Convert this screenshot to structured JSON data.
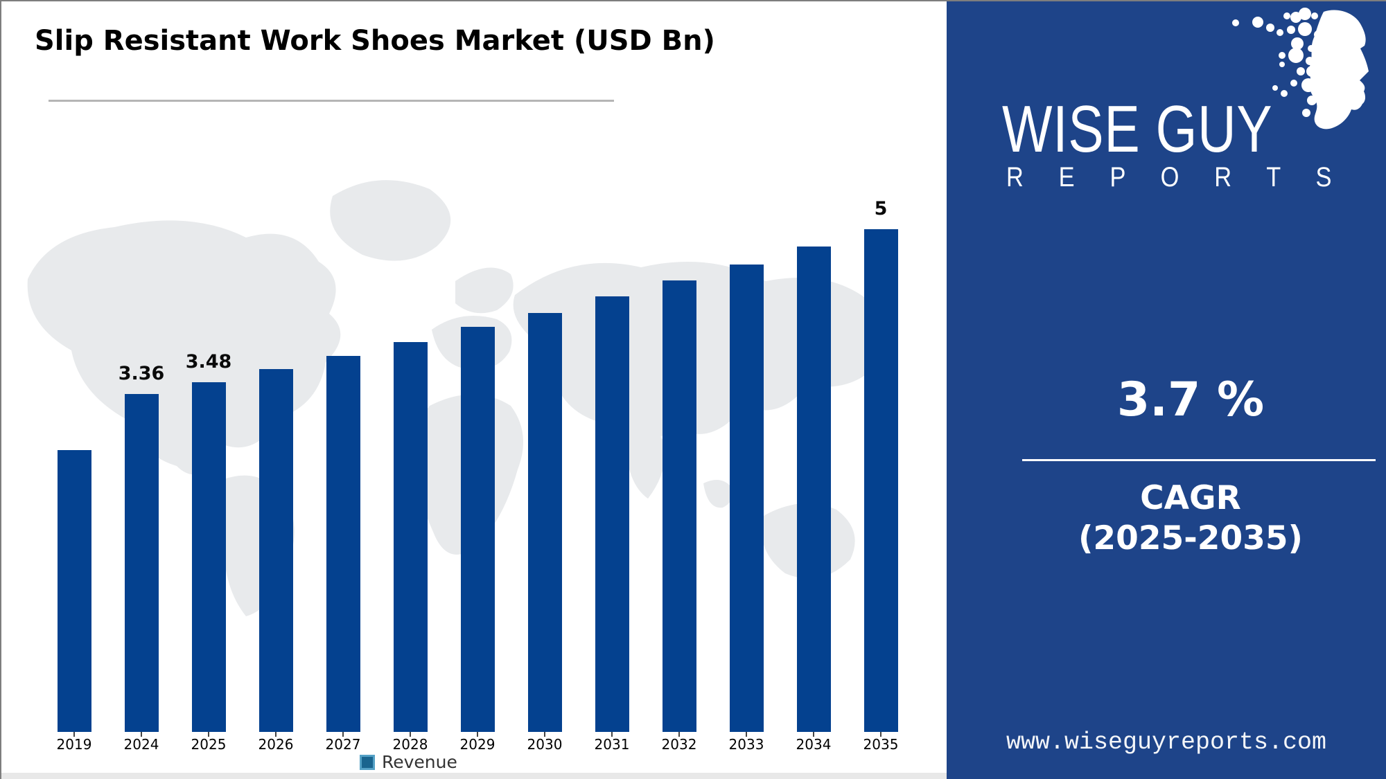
{
  "page": {
    "title": "Slip Resistant Work Shoes Market (USD Bn)"
  },
  "chart_data": {
    "type": "bar",
    "title": "Slip Resistant Work Shoes Market (USD Bn)",
    "unit": "USD Bn",
    "categories": [
      "2019",
      "2024",
      "2025",
      "2026",
      "2027",
      "2028",
      "2029",
      "2030",
      "2031",
      "2032",
      "2033",
      "2034",
      "2035"
    ],
    "values": [
      2.8,
      3.36,
      3.48,
      3.61,
      3.74,
      3.88,
      4.03,
      4.17,
      4.33,
      4.49,
      4.65,
      4.83,
      5
    ],
    "data_labels": [
      "",
      "3.36",
      "3.48",
      "",
      "",
      "",
      "",
      "",
      "",
      "",
      "",
      "",
      "5"
    ],
    "ylim": [
      0,
      5.6
    ],
    "grid": false,
    "bar_color": "#04418f",
    "legend": {
      "position": "bottom",
      "entries": [
        {
          "label": "Revenue",
          "color": "#19648e"
        }
      ]
    }
  },
  "sidebar": {
    "logo_line1": "WISE GUY",
    "logo_line2": "R E P O R T S",
    "cagr_value": "3.7 %",
    "cagr_line1": "CAGR",
    "cagr_line2": "(2025-2035)",
    "website": "www.wiseguyreports.com"
  },
  "colors": {
    "bar": "#04418f",
    "sidebar_bg": "#1e4489",
    "map": "#e8eaec",
    "legend_swatch": "#19648e",
    "legend_swatch_border": "#54a1c6"
  }
}
